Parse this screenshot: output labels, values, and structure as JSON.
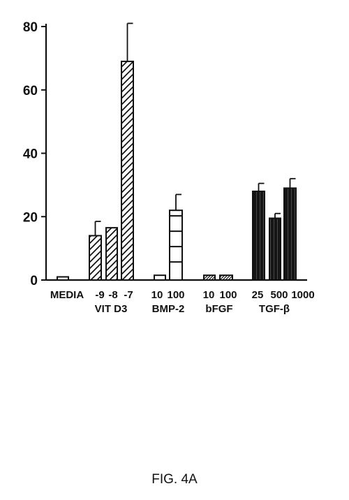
{
  "caption": "FIG. 4A",
  "chart_data": {
    "type": "bar",
    "title": "",
    "xlabel": "",
    "ylabel": "",
    "ylim": [
      0,
      80
    ],
    "yticks": [
      0,
      20,
      40,
      60,
      80
    ],
    "grid": false,
    "legend": "none",
    "groups": [
      {
        "name": "MEDIA",
        "pattern": "open",
        "bars": [
          {
            "label": "MEDIA",
            "value": 1,
            "error": null
          }
        ]
      },
      {
        "name": "VIT D3",
        "pattern": "diagonal-hatch",
        "bars": [
          {
            "label": "-9",
            "value": 14,
            "error": 4.5
          },
          {
            "label": "-8",
            "value": 16.5,
            "error": null
          },
          {
            "label": "-7",
            "value": 69,
            "error": 12
          }
        ]
      },
      {
        "name": "BMP-2",
        "pattern": "horizontal-bands",
        "bars": [
          {
            "label": "10",
            "value": 1.5,
            "error": null
          },
          {
            "label": "100",
            "value": 22,
            "error": 5
          }
        ]
      },
      {
        "name": "bFGF",
        "pattern": "fine-hatch",
        "bars": [
          {
            "label": "10",
            "value": 1.5,
            "error": null
          },
          {
            "label": "100",
            "value": 1.5,
            "error": null
          }
        ]
      },
      {
        "name": "TGF-β",
        "pattern": "solid-black",
        "bars": [
          {
            "label": "25",
            "value": 28,
            "error": 2.5
          },
          {
            "label": "500",
            "value": 19.5,
            "error": 1.5
          },
          {
            "label": "1000",
            "value": 29,
            "error": 3
          }
        ]
      }
    ]
  }
}
